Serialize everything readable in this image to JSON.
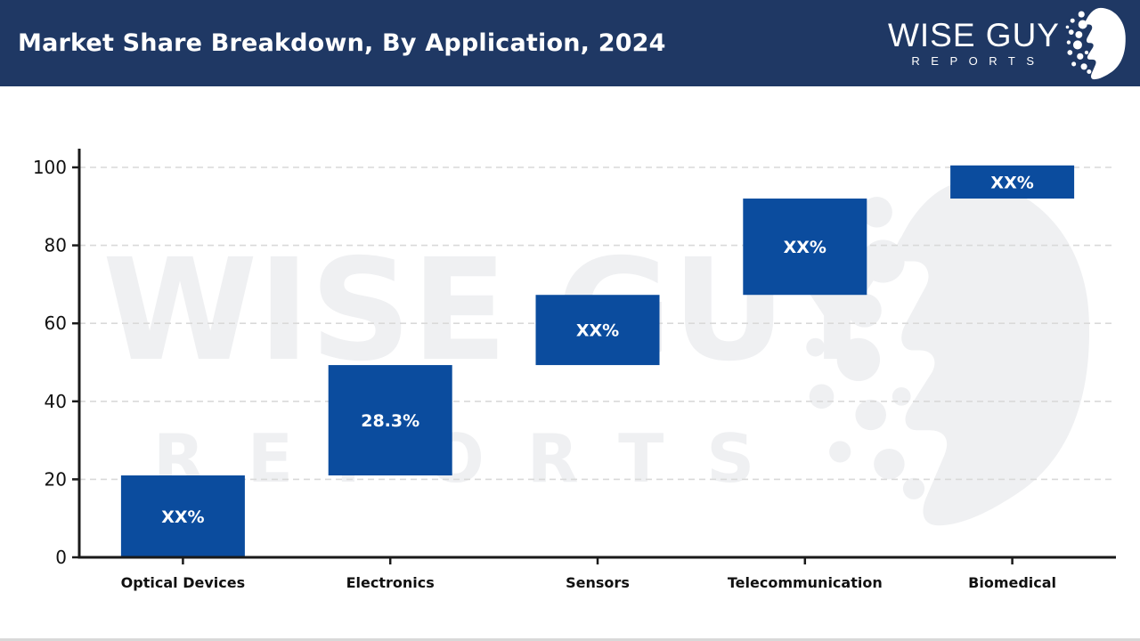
{
  "header": {
    "title": "Market Share Breakdown, By Application, 2024",
    "background_color": "#1f3864"
  },
  "logo": {
    "name": "WISE GUY",
    "sub": "REPORTS",
    "face_icon": "dotted-face-profile"
  },
  "watermark": {
    "line1": "WISE GUY",
    "line2": "REPORTS",
    "face_icon": "dotted-face-profile"
  },
  "chart_data": {
    "type": "bar",
    "subtype": "waterfall",
    "title": "Market Share Breakdown, By Application, 2024",
    "categories": [
      "Optical Devices",
      "Electronics",
      "Sensors",
      "Telecommunication",
      "Biomedical"
    ],
    "segments": [
      {
        "category": "Optical Devices",
        "start": 0,
        "end": 21,
        "label": "XX%"
      },
      {
        "category": "Electronics",
        "start": 21,
        "end": 49.3,
        "label": "28.3%"
      },
      {
        "category": "Sensors",
        "start": 49.3,
        "end": 67.3,
        "label": "XX%"
      },
      {
        "category": "Telecommunication",
        "start": 67.3,
        "end": 92,
        "label": "XX%"
      },
      {
        "category": "Biomedical",
        "start": 92,
        "end": 100.5,
        "label": "XX%"
      }
    ],
    "xlabel": "",
    "ylabel": "",
    "ylim": [
      0,
      100
    ],
    "yticks": [
      0,
      20,
      40,
      60,
      80,
      100
    ],
    "grid": {
      "horizontal": true,
      "style": "dashed",
      "color": "#d9d9d9"
    },
    "legend": null,
    "bar_color": "#0b4c9e",
    "bar_label_color": "#ffffff",
    "axis_color": "#1a1a1a",
    "tick_label_color": "#111111"
  }
}
